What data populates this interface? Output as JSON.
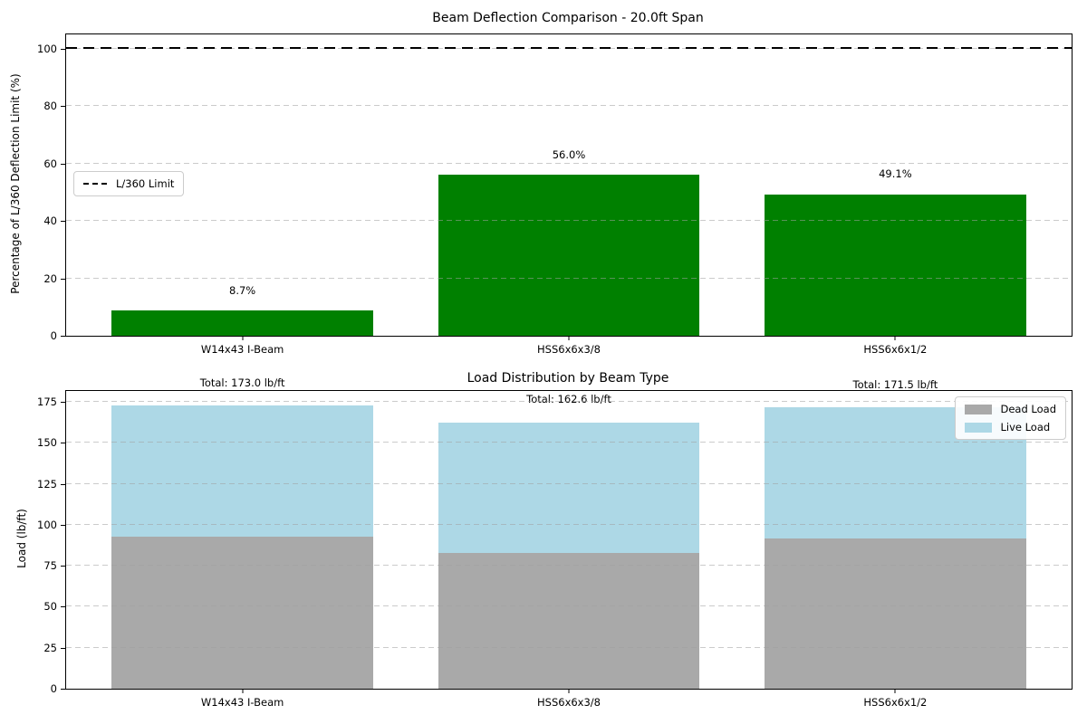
{
  "figure": {
    "background": "#ffffff"
  },
  "colors": {
    "deflection_bar": "#008000",
    "dead_load": "#a9a9a9",
    "live_load": "#add8e6",
    "limit_line": "#000000",
    "grid": "#c8c8c8"
  },
  "chart_data": [
    {
      "type": "bar",
      "title": "Beam Deflection Comparison - 20.0ft Span",
      "ylabel": "Percentage of L/360 Deflection Limit (%)",
      "xlabel": "",
      "categories": [
        "W14x43 I-Beam",
        "HSS6x6x3/8",
        "HSS6x6x1/2"
      ],
      "values": [
        8.7,
        56.0,
        49.1
      ],
      "bar_labels": [
        "8.7%",
        "56.0%",
        "49.1%"
      ],
      "bar_color": "#008000",
      "ylim": [
        0,
        105
      ],
      "yticks": [
        0,
        20,
        40,
        60,
        80,
        100
      ],
      "grid": true,
      "legend_position": "center-left",
      "reference_line": {
        "value": 100,
        "label": "L/360 Limit",
        "color": "#000000",
        "style": "dashed"
      },
      "legend_entries": [
        {
          "label": "L/360 Limit",
          "swatch": "dashed-line",
          "color": "#000000"
        }
      ]
    },
    {
      "type": "stacked-bar",
      "title": "Load Distribution by Beam Type",
      "ylabel": "Load (lb/ft)",
      "xlabel": "",
      "categories": [
        "W14x43 I-Beam",
        "HSS6x6x3/8",
        "HSS6x6x1/2"
      ],
      "series": [
        {
          "name": "Dead Load",
          "color": "#a9a9a9",
          "values": [
            93.0,
            82.6,
            91.5
          ]
        },
        {
          "name": "Live Load",
          "color": "#add8e6",
          "values": [
            80.0,
            80.0,
            80.0
          ]
        }
      ],
      "totals": [
        173.0,
        162.6,
        171.5
      ],
      "total_labels": [
        "Total: 173.0 lb/ft",
        "Total: 162.6 lb/ft",
        "Total: 171.5 lb/ft"
      ],
      "ylim": [
        0,
        181.7
      ],
      "yticks": [
        0,
        25,
        50,
        75,
        100,
        125,
        150,
        175
      ],
      "grid": true,
      "legend_position": "upper-right",
      "legend_entries": [
        {
          "label": "Dead Load",
          "swatch": "patch",
          "color": "#a9a9a9"
        },
        {
          "label": "Live Load",
          "swatch": "patch",
          "color": "#add8e6"
        }
      ]
    }
  ]
}
